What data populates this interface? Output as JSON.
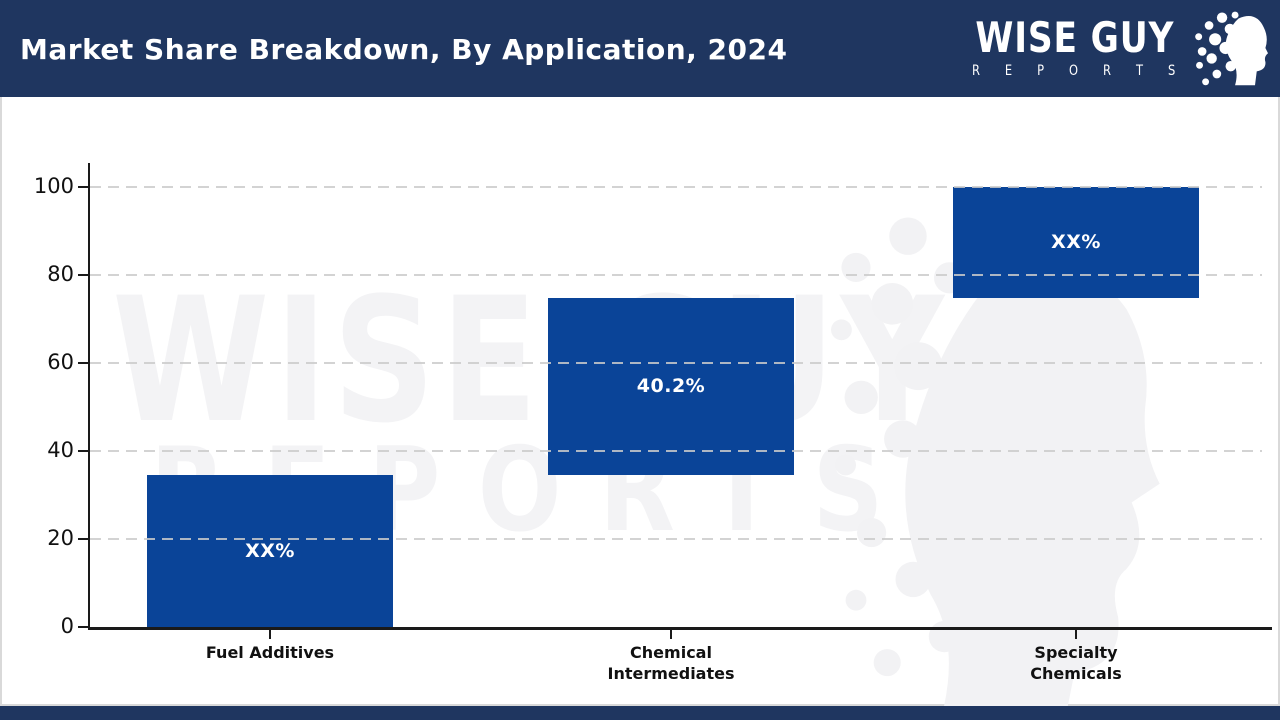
{
  "header": {
    "title": "Market Share Breakdown, By Application, 2024",
    "logo": {
      "line1": "WISE GUY",
      "line2": "R E P O R T S"
    }
  },
  "watermark": {
    "text_top": "WISE GUY",
    "text_bottom": "REPORTS"
  },
  "chart_data": {
    "type": "bar",
    "subtype": "floating-segment-waterfall",
    "title": "Market Share Breakdown, By Application, 2024",
    "categories": [
      "Fuel Additives",
      "Chemical Intermediates",
      "Specialty Chemicals"
    ],
    "category_label_lines": [
      [
        "Fuel Additives"
      ],
      [
        "Chemical",
        "Intermediates"
      ],
      [
        "Specialty",
        "Chemicals"
      ]
    ],
    "bars": [
      {
        "category": "Fuel Additives",
        "start": 0,
        "end": 34.5,
        "label": "XX%"
      },
      {
        "category": "Chemical Intermediates",
        "start": 34.5,
        "end": 74.7,
        "label": "40.2%"
      },
      {
        "category": "Specialty Chemicals",
        "start": 74.7,
        "end": 100,
        "label": "XX%"
      }
    ],
    "xlabel": "",
    "ylabel": "",
    "ylim": [
      0,
      100
    ],
    "yticks": [
      0,
      20,
      40,
      60,
      80,
      100
    ],
    "grid": "horizontal dashed, drawn over bars",
    "legend": "none"
  },
  "colors": {
    "header_bg": "#1f3660",
    "footer_bg": "#1f3660",
    "bar": "#0a4498",
    "bar_label": "#ffffff",
    "axis": "#1a1a1a",
    "grid": "#cbcbcb",
    "watermark": "#f3f3f5",
    "frame": "#d9d9d9"
  }
}
